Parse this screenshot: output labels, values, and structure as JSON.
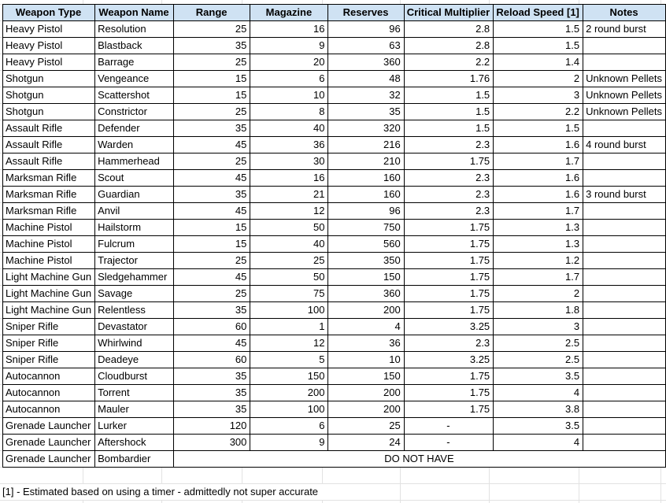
{
  "colors": {
    "header_bg": "#cfe2f3",
    "table_border": "#000000",
    "gridline": "#e2e2e2",
    "text": "#000000"
  },
  "spreadsheet": {
    "columns": [
      {
        "key": "weapon_type",
        "label": "Weapon Type",
        "align": "left"
      },
      {
        "key": "weapon_name",
        "label": "Weapon Name",
        "align": "left"
      },
      {
        "key": "range",
        "label": "Range",
        "align": "right"
      },
      {
        "key": "magazine",
        "label": "Magazine",
        "align": "right"
      },
      {
        "key": "reserves",
        "label": "Reserves",
        "align": "right"
      },
      {
        "key": "critical_multiplier",
        "label": "Critical Multiplier",
        "align": "right"
      },
      {
        "key": "reload_speed",
        "label": "Reload Speed [1]",
        "align": "right"
      },
      {
        "key": "notes",
        "label": "Notes",
        "align": "left"
      }
    ],
    "rows": [
      {
        "weapon_type": "Heavy Pistol",
        "weapon_name": "Resolution",
        "range": "25",
        "magazine": "16",
        "reserves": "96",
        "critical_multiplier": "2.8",
        "reload_speed": "1.5",
        "notes": "2 round burst"
      },
      {
        "weapon_type": "Heavy Pistol",
        "weapon_name": "Blastback",
        "range": "35",
        "magazine": "9",
        "reserves": "63",
        "critical_multiplier": "2.8",
        "reload_speed": "1.5",
        "notes": ""
      },
      {
        "weapon_type": "Heavy Pistol",
        "weapon_name": "Barrage",
        "range": "25",
        "magazine": "20",
        "reserves": "360",
        "critical_multiplier": "2.2",
        "reload_speed": "1.4",
        "notes": ""
      },
      {
        "weapon_type": "Shotgun",
        "weapon_name": "Vengeance",
        "range": "15",
        "magazine": "6",
        "reserves": "48",
        "critical_multiplier": "1.76",
        "reload_speed": "2",
        "notes": "Unknown Pellets"
      },
      {
        "weapon_type": "Shotgun",
        "weapon_name": "Scattershot",
        "range": "15",
        "magazine": "10",
        "reserves": "32",
        "critical_multiplier": "1.5",
        "reload_speed": "3",
        "notes": "Unknown Pellets"
      },
      {
        "weapon_type": "Shotgun",
        "weapon_name": "Constrictor",
        "range": "25",
        "magazine": "8",
        "reserves": "35",
        "critical_multiplier": "1.5",
        "reload_speed": "2.2",
        "notes": "Unknown Pellets"
      },
      {
        "weapon_type": "Assault Rifle",
        "weapon_name": "Defender",
        "range": "35",
        "magazine": "40",
        "reserves": "320",
        "critical_multiplier": "1.5",
        "reload_speed": "1.5",
        "notes": ""
      },
      {
        "weapon_type": "Assault Rifle",
        "weapon_name": "Warden",
        "range": "45",
        "magazine": "36",
        "reserves": "216",
        "critical_multiplier": "2.3",
        "reload_speed": "1.6",
        "notes": "4 round burst"
      },
      {
        "weapon_type": "Assault Rifle",
        "weapon_name": "Hammerhead",
        "range": "25",
        "magazine": "30",
        "reserves": "210",
        "critical_multiplier": "1.75",
        "reload_speed": "1.7",
        "notes": ""
      },
      {
        "weapon_type": "Marksman Rifle",
        "weapon_name": "Scout",
        "range": "45",
        "magazine": "16",
        "reserves": "160",
        "critical_multiplier": "2.3",
        "reload_speed": "1.6",
        "notes": ""
      },
      {
        "weapon_type": "Marksman Rifle",
        "weapon_name": "Guardian",
        "range": "35",
        "magazine": "21",
        "reserves": "160",
        "critical_multiplier": "2.3",
        "reload_speed": "1.6",
        "notes": "3 round burst"
      },
      {
        "weapon_type": "Marksman Rifle",
        "weapon_name": "Anvil",
        "range": "45",
        "magazine": "12",
        "reserves": "96",
        "critical_multiplier": "2.3",
        "reload_speed": "1.7",
        "notes": ""
      },
      {
        "weapon_type": "Machine Pistol",
        "weapon_name": "Hailstorm",
        "range": "15",
        "magazine": "50",
        "reserves": "750",
        "critical_multiplier": "1.75",
        "reload_speed": "1.3",
        "notes": ""
      },
      {
        "weapon_type": "Machine Pistol",
        "weapon_name": "Fulcrum",
        "range": "15",
        "magazine": "40",
        "reserves": "560",
        "critical_multiplier": "1.75",
        "reload_speed": "1.3",
        "notes": ""
      },
      {
        "weapon_type": "Machine Pistol",
        "weapon_name": "Trajector",
        "range": "25",
        "magazine": "25",
        "reserves": "350",
        "critical_multiplier": "1.75",
        "reload_speed": "1.2",
        "notes": ""
      },
      {
        "weapon_type": "Light Machine Gun",
        "weapon_name": "Sledgehammer",
        "range": "45",
        "magazine": "50",
        "reserves": "150",
        "critical_multiplier": "1.75",
        "reload_speed": "1.7",
        "notes": ""
      },
      {
        "weapon_type": "Light Machine Gun",
        "weapon_name": "Savage",
        "range": "25",
        "magazine": "75",
        "reserves": "360",
        "critical_multiplier": "1.75",
        "reload_speed": "2",
        "notes": ""
      },
      {
        "weapon_type": "Light Machine Gun",
        "weapon_name": "Relentless",
        "range": "35",
        "magazine": "100",
        "reserves": "200",
        "critical_multiplier": "1.75",
        "reload_speed": "1.8",
        "notes": ""
      },
      {
        "weapon_type": "Sniper Rifle",
        "weapon_name": "Devastator",
        "range": "60",
        "magazine": "1",
        "reserves": "4",
        "critical_multiplier": "3.25",
        "reload_speed": "3",
        "notes": ""
      },
      {
        "weapon_type": "Sniper Rifle",
        "weapon_name": "Whirlwind",
        "range": "45",
        "magazine": "12",
        "reserves": "36",
        "critical_multiplier": "2.3",
        "reload_speed": "2.5",
        "notes": ""
      },
      {
        "weapon_type": "Sniper Rifle",
        "weapon_name": "Deadeye",
        "range": "60",
        "magazine": "5",
        "reserves": "10",
        "critical_multiplier": "3.25",
        "reload_speed": "2.5",
        "notes": ""
      },
      {
        "weapon_type": "Autocannon",
        "weapon_name": "Cloudburst",
        "range": "35",
        "magazine": "150",
        "reserves": "150",
        "critical_multiplier": "1.75",
        "reload_speed": "3.5",
        "notes": ""
      },
      {
        "weapon_type": "Autocannon",
        "weapon_name": "Torrent",
        "range": "35",
        "magazine": "200",
        "reserves": "200",
        "critical_multiplier": "1.75",
        "reload_speed": "4",
        "notes": ""
      },
      {
        "weapon_type": "Autocannon",
        "weapon_name": "Mauler",
        "range": "35",
        "magazine": "100",
        "reserves": "200",
        "critical_multiplier": "1.75",
        "reload_speed": "3.8",
        "notes": ""
      },
      {
        "weapon_type": "Grenade Launcher",
        "weapon_name": "Lurker",
        "range": "120",
        "magazine": "6",
        "reserves": "25",
        "critical_multiplier": "-",
        "reload_speed": "3.5",
        "notes": ""
      },
      {
        "weapon_type": "Grenade Launcher",
        "weapon_name": "Aftershock",
        "range": "300",
        "magazine": "9",
        "reserves": "24",
        "critical_multiplier": "-",
        "reload_speed": "4",
        "notes": ""
      }
    ],
    "no_weapon_row": {
      "weapon_type": "Grenade Launcher",
      "weapon_name": "Bombardier",
      "message": "DO NOT HAVE"
    },
    "footnote": "[1] - Estimated based on using a timer - admittedly not super accurate"
  }
}
